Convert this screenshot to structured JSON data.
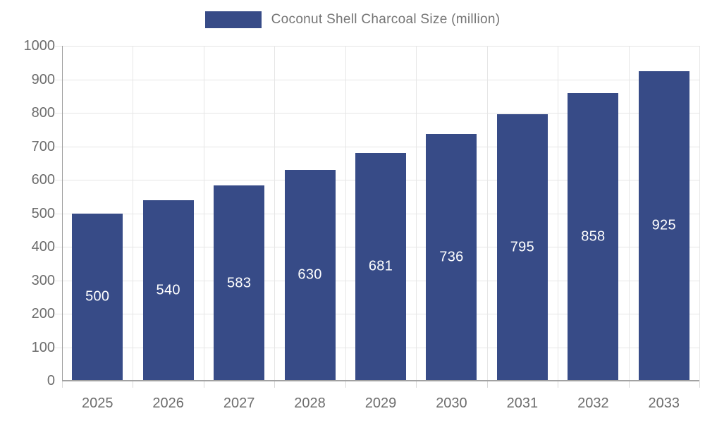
{
  "chart_data": {
    "type": "bar",
    "title": "Coconut Shell Charcoal Size (million)",
    "categories": [
      "2025",
      "2026",
      "2027",
      "2028",
      "2029",
      "2030",
      "2031",
      "2032",
      "2033"
    ],
    "values": [
      500,
      540,
      583,
      630,
      681,
      736,
      795,
      858,
      925
    ],
    "xlabel": "",
    "ylabel": "",
    "ylim": [
      0,
      1000
    ],
    "ytick_interval": 100,
    "grid": true,
    "legend_position": "top",
    "value_labels": "inside-center"
  },
  "colors": {
    "bar": "#374B87",
    "value_label": "#ffffff",
    "axis_text": "#6d6d6d",
    "legend_text": "#757575",
    "grid_line": "#e6e6e6",
    "axis_line": "#9e9e9e"
  },
  "legend": {
    "label": "Coconut Shell Charcoal Size (million)"
  }
}
